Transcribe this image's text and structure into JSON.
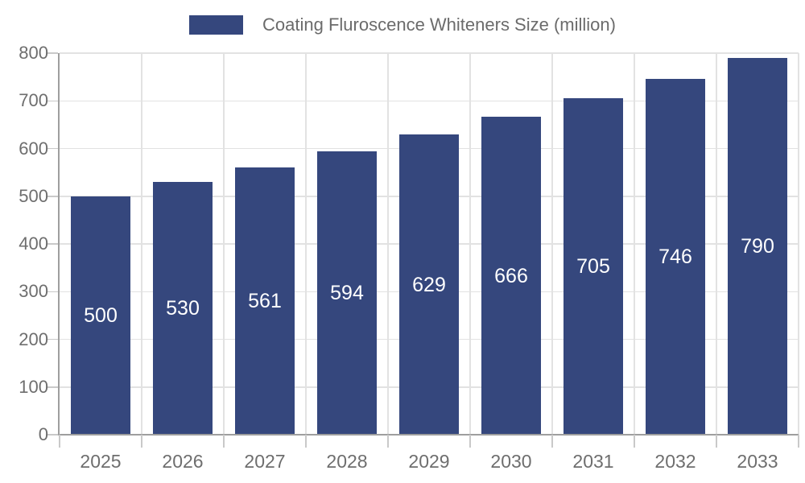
{
  "legend": {
    "label": "Coating Fluroscence Whiteners Size (million)"
  },
  "chart_data": {
    "type": "bar",
    "title": "Coating Fluroscence Whiteners Size (million)",
    "series_name": "Coating Fluroscence Whiteners Size (million)",
    "categories": [
      "2025",
      "2026",
      "2027",
      "2028",
      "2029",
      "2030",
      "2031",
      "2032",
      "2033"
    ],
    "values": [
      500,
      530,
      561,
      594,
      629,
      666,
      705,
      746,
      790
    ],
    "value_labels": [
      "500",
      "530",
      "561",
      "594",
      "629",
      "666",
      "705",
      "746",
      "790"
    ],
    "xlabel": "",
    "ylabel": "",
    "ylim": [
      0,
      800
    ],
    "ytick_step": 100,
    "yticks": [
      0,
      100,
      200,
      300,
      400,
      500,
      600,
      700,
      800
    ],
    "ytick_labels": [
      "0",
      "100",
      "200",
      "300",
      "400",
      "500",
      "600",
      "700",
      "800"
    ],
    "grid": true,
    "legend_position": "top",
    "colors": {
      "bar": "#35477d",
      "value_label": "#ffffff",
      "axis_text": "#6e6e6e",
      "legend_text": "#6b6b6b",
      "grid_line": "#e2e2e2",
      "axis_line": "#9e9e9e",
      "tick_mark": "#c9c9c9",
      "background": "#ffffff"
    }
  }
}
